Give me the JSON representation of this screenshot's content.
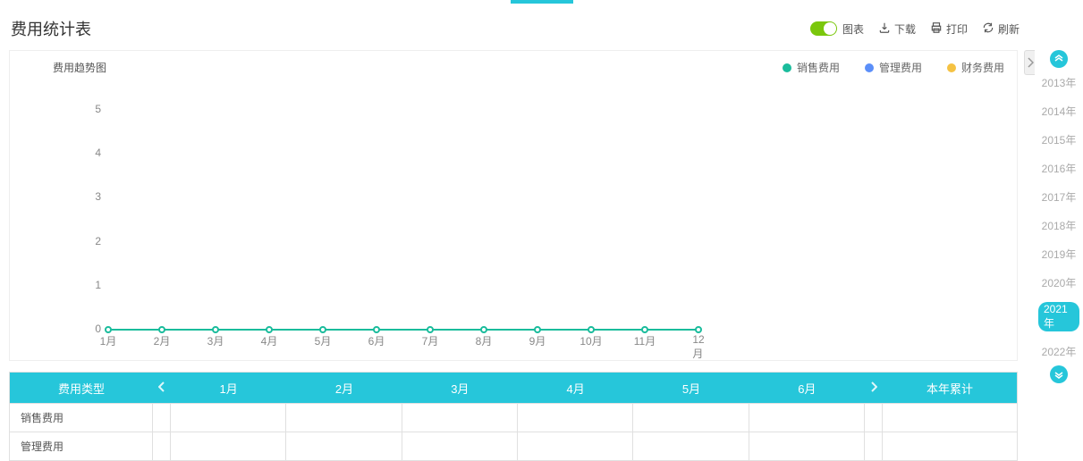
{
  "page": {
    "title": "费用统计表"
  },
  "toolbar": {
    "chart_toggle_label": "图表",
    "chart_toggle_on": true,
    "toggle_on_color": "#7ac70c",
    "download_label": "下载",
    "print_label": "打印",
    "refresh_label": "刷新"
  },
  "chart": {
    "title": "费用趋势图",
    "type": "line",
    "x_labels": [
      "1月",
      "2月",
      "3月",
      "4月",
      "5月",
      "6月",
      "7月",
      "8月",
      "9月",
      "10月",
      "11月",
      "12月"
    ],
    "y_ticks": [
      0,
      1,
      2,
      3,
      4,
      5
    ],
    "ylim": [
      0,
      5
    ],
    "series": [
      {
        "name": "销售费用",
        "color": "#1abc9c",
        "values": [
          0,
          0,
          0,
          0,
          0,
          0,
          0,
          0,
          0,
          0,
          0,
          0
        ]
      },
      {
        "name": "管理费用",
        "color": "#5b8ff9",
        "values": [
          0,
          0,
          0,
          0,
          0,
          0,
          0,
          0,
          0,
          0,
          0,
          0
        ]
      },
      {
        "name": "财务费用",
        "color": "#f5c242",
        "values": [
          0,
          0,
          0,
          0,
          0,
          0,
          0,
          0,
          0,
          0,
          0,
          0
        ]
      }
    ],
    "axis_color": "#888",
    "grid_color": "#e8e8e8",
    "background_color": "#ffffff",
    "title_fontsize": 12,
    "label_fontsize": 12
  },
  "table": {
    "type_header": "费用类型",
    "month_headers": [
      "1月",
      "2月",
      "3月",
      "4月",
      "5月",
      "6月"
    ],
    "total_header": "本年累计",
    "header_bg": "#26c6da",
    "header_fg": "#ffffff",
    "rows": [
      {
        "type": "销售费用",
        "cells": [
          "",
          "",
          "",
          "",
          "",
          ""
        ],
        "total": ""
      },
      {
        "type": "管理费用",
        "cells": [
          "",
          "",
          "",
          "",
          "",
          ""
        ],
        "total": ""
      }
    ]
  },
  "year_rail": {
    "accent_color": "#26c6da",
    "years": [
      "2013年",
      "2014年",
      "2015年",
      "2016年",
      "2017年",
      "2018年",
      "2019年",
      "2020年",
      "2021年",
      "2022年"
    ],
    "active_index": 8
  }
}
